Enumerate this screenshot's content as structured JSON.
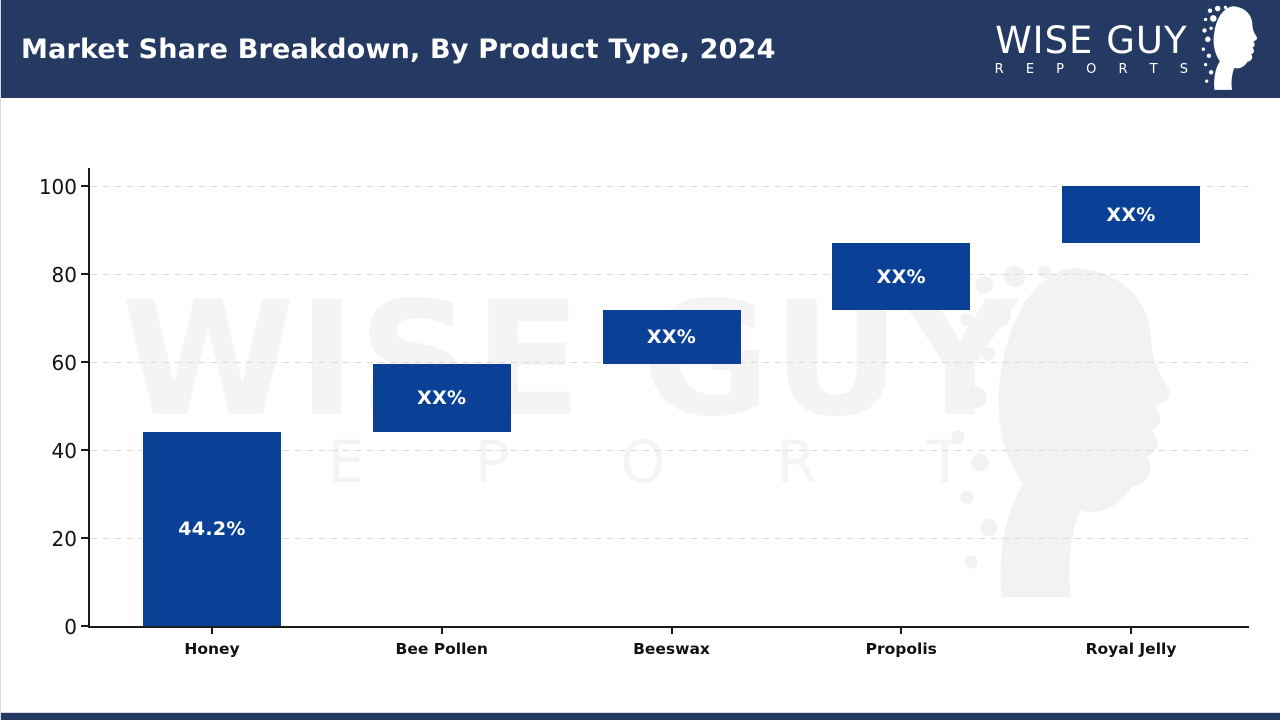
{
  "header": {
    "title": "Market Share Breakdown, By Product Type, 2024",
    "logo": {
      "line1": "WISE GUY",
      "line2": "R E P O R T S"
    }
  },
  "watermark": {
    "line1": "WISE GUY",
    "line2": "R E P O R T S"
  },
  "colors": {
    "header_bg": "#253a63",
    "bar": "#0a4196",
    "bar_label": "#ffffff",
    "axis": "#1a1a1a",
    "grid": "#dcdcdc",
    "footer_bg": "#253a63"
  },
  "chart_data": {
    "type": "bar",
    "subtype": "waterfall",
    "title": "Market Share Breakdown, By Product Type, 2024",
    "xlabel": "",
    "ylabel": "",
    "categories": [
      "Honey",
      "Bee Pollen",
      "Beeswax",
      "Propolis",
      "Royal Jelly"
    ],
    "segments": [
      {
        "category": "Honey",
        "start": 0,
        "end": 44.2,
        "label": "44.2%"
      },
      {
        "category": "Bee Pollen",
        "start": 44.2,
        "end": 59.6,
        "label": "XX%"
      },
      {
        "category": "Beeswax",
        "start": 59.6,
        "end": 71.8,
        "label": "XX%"
      },
      {
        "category": "Propolis",
        "start": 71.8,
        "end": 87.0,
        "label": "XX%"
      },
      {
        "category": "Royal Jelly",
        "start": 87.0,
        "end": 100.0,
        "label": "XX%"
      }
    ],
    "y_ticks": [
      0,
      20,
      40,
      60,
      80,
      100
    ],
    "ylim": [
      0,
      105
    ],
    "grid": "horizontal-dashed",
    "legend": "none"
  }
}
